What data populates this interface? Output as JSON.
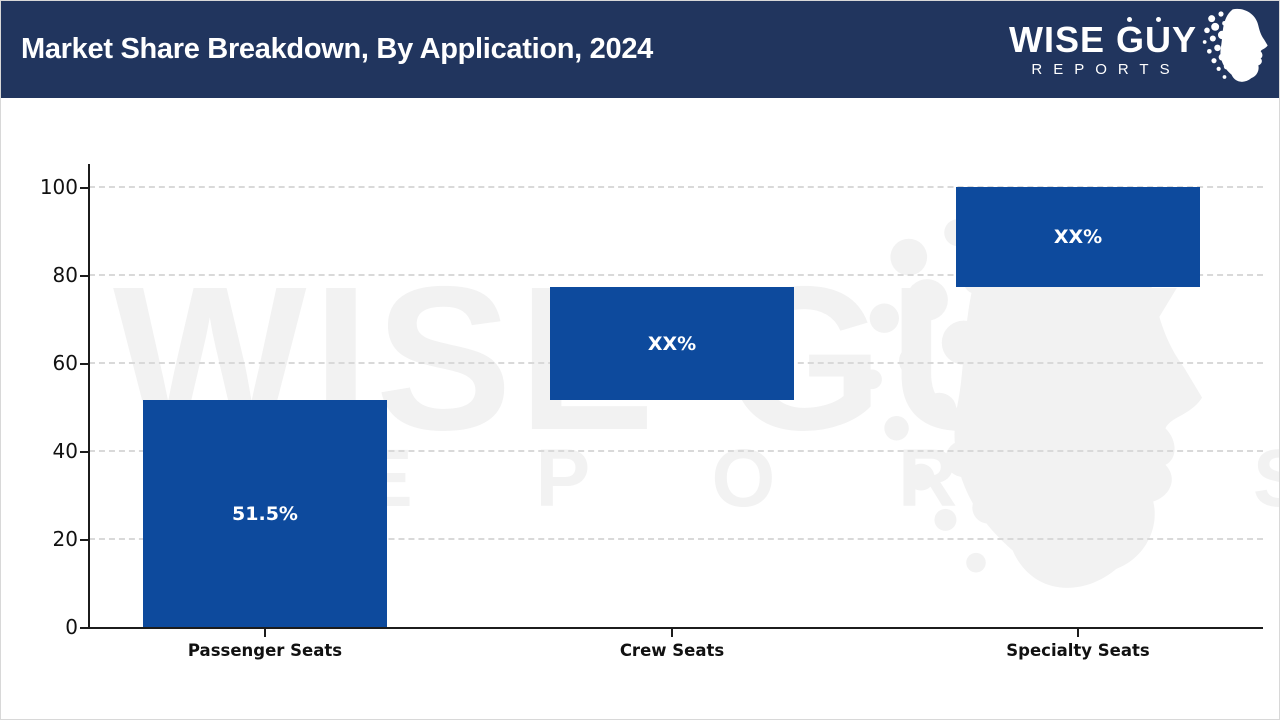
{
  "header": {
    "title": "Market Share Breakdown, By Application, 2024",
    "logo_line1": "WISE GUY",
    "logo_line2": "REPORTS"
  },
  "watermark": {
    "line1": "WISE GUY",
    "line2": "R E P O R T S"
  },
  "chart_data": {
    "type": "bar",
    "variant": "waterfall",
    "title": "Market Share Breakdown, By Application, 2024",
    "categories": [
      "Passenger Seats",
      "Crew Seats",
      "Specialty Seats"
    ],
    "bars": [
      {
        "category": "Passenger Seats",
        "start": 0,
        "end": 51.5,
        "label": "51.5%"
      },
      {
        "category": "Crew Seats",
        "start": 51.5,
        "end": 77.3,
        "label": "XX%"
      },
      {
        "category": "Specialty Seats",
        "start": 77.3,
        "end": 100,
        "label": "XX%"
      }
    ],
    "xlabel": "",
    "ylabel": "",
    "yticks": [
      0,
      20,
      40,
      60,
      80,
      100
    ],
    "ylim": [
      0,
      105
    ],
    "grid": "horizontal-dashed",
    "legend": "none",
    "bar_color": "#0d4a9d",
    "bar_label_color": "#ffffff",
    "axis_color": "#1c1c1c",
    "gridline_color": "#d9d9d9",
    "header_bg_color": "#21355e",
    "watermark_color": "#f2f2f2"
  }
}
